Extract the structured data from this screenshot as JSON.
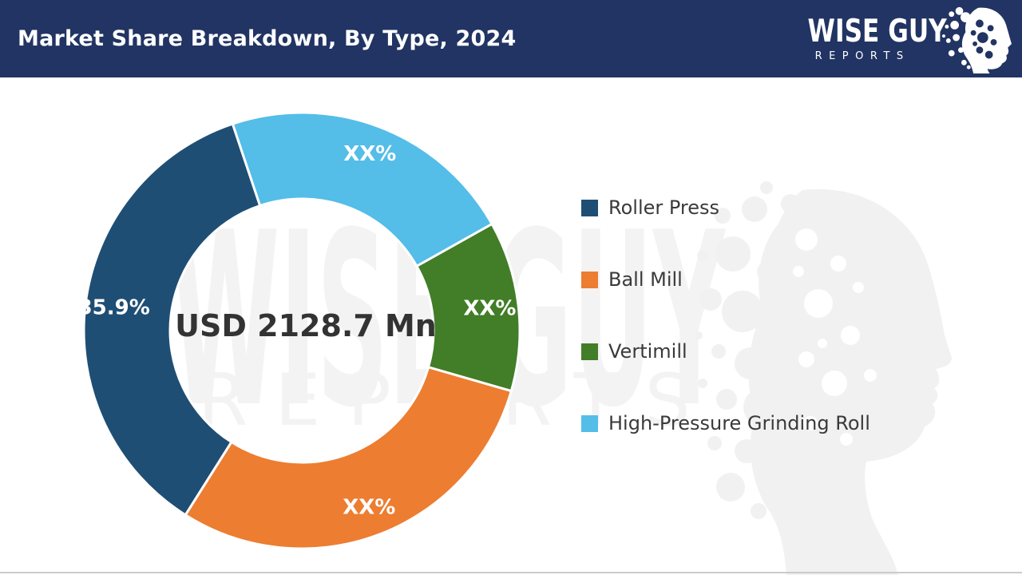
{
  "header": {
    "title": "Market Share Breakdown, By Type, 2024",
    "bg_color": "#213463",
    "logo": {
      "line1": "WISE GUY",
      "line2": "REPORTS"
    }
  },
  "watermark": {
    "line1": "WISE GUY",
    "line2": "REPORTS"
  },
  "chart_data": {
    "type": "pie",
    "donut": true,
    "title": "Market Share Breakdown, By Type, 2024",
    "center_label": "USD 2128.7 Mn",
    "legend_position": "right",
    "start_angle_deg_clockwise_from_top": -18.5,
    "direction": "counterclockwise",
    "segments": [
      {
        "name": "Roller Press",
        "label": "35.9%",
        "value_pct": 35.9,
        "color": "#1F4E74"
      },
      {
        "name": "Ball Mill",
        "label": "XX%",
        "value_pct": 29.5,
        "color": "#ED7D31"
      },
      {
        "name": "Vertimill",
        "label": "XX%",
        "value_pct": 12.6,
        "color": "#427D28"
      },
      {
        "name": "High-Pressure Grinding Roll",
        "label": "XX%",
        "value_pct": 22.0,
        "color": "#54BDE8"
      }
    ]
  },
  "colors": {
    "header_bg": "#213463",
    "watermark": "#f2f2f2",
    "slice_label_text": "#ffffff",
    "center_text": "#333333",
    "legend_text": "#3a3a3a",
    "divider": "#cbcbcb"
  }
}
